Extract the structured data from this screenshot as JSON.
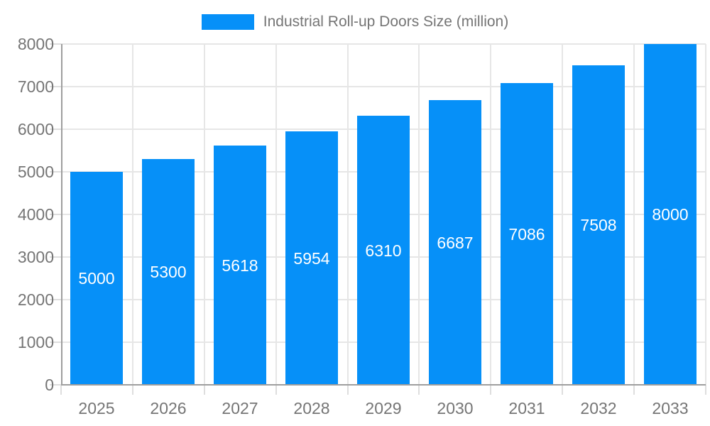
{
  "legend": {
    "label": "Industrial Roll-up Doors Size (million)",
    "swatch_color": "#0690f8",
    "position": "top"
  },
  "chart_data": {
    "type": "bar",
    "title": "Industrial Roll-up Doors Size (million)",
    "series_name": "Industrial Roll-up Doors Size (million)",
    "categories": [
      "2025",
      "2026",
      "2027",
      "2028",
      "2029",
      "2030",
      "2031",
      "2032",
      "2033"
    ],
    "values": [
      5000,
      5300,
      5618,
      5954,
      6310,
      6687,
      7086,
      7508,
      8000
    ],
    "value_labels": [
      "5000",
      "5300",
      "5618",
      "5954",
      "6310",
      "6687",
      "7086",
      "7508",
      "8000"
    ],
    "value_labels_inside_bars": true,
    "xlabel": "",
    "ylabel": "",
    "ylim": [
      0,
      8000
    ],
    "yticks": [
      0,
      1000,
      2000,
      3000,
      4000,
      5000,
      6000,
      7000,
      8000
    ],
    "grid": true,
    "legend_position": "top",
    "colors": {
      "bar": "#0690f8",
      "bar_value_text": "#ffffff",
      "axis_text": "#757575",
      "legend_text": "#757575",
      "gridline": "#e6e6e6",
      "axis_line": "#9e9e9e",
      "background": "#ffffff"
    }
  }
}
